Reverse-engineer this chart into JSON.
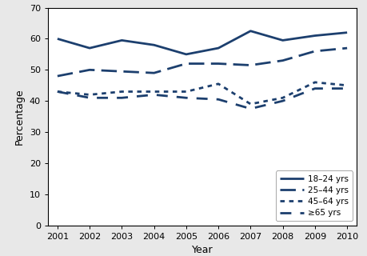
{
  "years": [
    2001,
    2002,
    2003,
    2004,
    2005,
    2006,
    2007,
    2008,
    2009,
    2010
  ],
  "series": {
    "18-24 yrs": [
      60,
      57,
      59.5,
      58,
      55,
      57,
      62.5,
      59.5,
      61,
      62
    ],
    "25-44 yrs": [
      48,
      50,
      49.5,
      49,
      52,
      52,
      51.5,
      53,
      56,
      57
    ],
    "45-64 yrs": [
      43,
      42,
      43,
      43,
      43,
      45.5,
      39,
      41,
      46,
      45
    ],
    ">=65 yrs": [
      43,
      41,
      41,
      42,
      41,
      40.5,
      37.5,
      40,
      44,
      44
    ]
  },
  "legend_labels": {
    "18-24 yrs": "18–24 yrs",
    "25-44 yrs": "25–44 yrs",
    "45-64 yrs": "45–64 yrs",
    ">=65 yrs": "≥65 yrs"
  },
  "color": "#1c3f6e",
  "xlim": [
    2001,
    2010
  ],
  "ylim": [
    0,
    70
  ],
  "yticks": [
    0,
    10,
    20,
    30,
    40,
    50,
    60,
    70
  ],
  "xticks": [
    2001,
    2002,
    2003,
    2004,
    2005,
    2006,
    2007,
    2008,
    2009,
    2010
  ],
  "xlabel": "Year",
  "ylabel": "Percentage",
  "linewidth": 1.8,
  "legend_loc": "lower right",
  "legend_fontsize": 7.5,
  "fig_bg": "#e8e8e8"
}
